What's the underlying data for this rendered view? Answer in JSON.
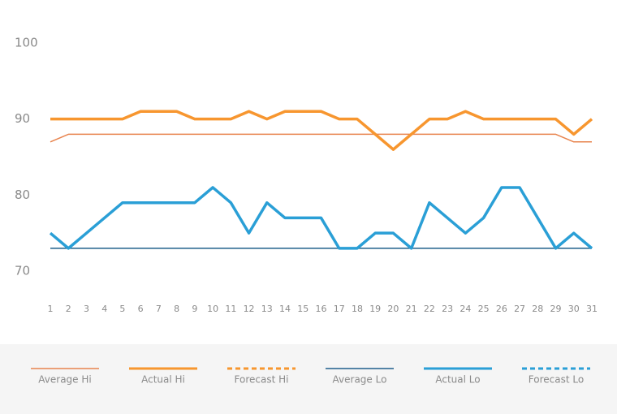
{
  "chart_data": {
    "type": "line",
    "x": [
      1,
      2,
      3,
      4,
      5,
      6,
      7,
      8,
      9,
      10,
      11,
      12,
      13,
      14,
      15,
      16,
      17,
      18,
      19,
      20,
      21,
      22,
      23,
      24,
      25,
      26,
      27,
      28,
      29,
      30,
      31
    ],
    "xlim": [
      1,
      31
    ],
    "xticks": [
      1,
      2,
      3,
      4,
      5,
      6,
      7,
      8,
      9,
      10,
      11,
      12,
      13,
      14,
      15,
      16,
      17,
      18,
      19,
      20,
      21,
      22,
      23,
      24,
      25,
      26,
      27,
      28,
      29,
      30,
      31
    ],
    "ylim": [
      70,
      100
    ],
    "yticks": [
      70,
      80,
      90,
      100
    ],
    "grid": false,
    "legend": "bottom",
    "series": [
      {
        "name": "Average Hi",
        "color": "#e8844e",
        "line_width": 1.5,
        "dashed": false,
        "values": [
          87,
          88,
          88,
          88,
          88,
          88,
          88,
          88,
          88,
          88,
          88,
          88,
          88,
          88,
          88,
          88,
          88,
          88,
          88,
          88,
          88,
          88,
          88,
          88,
          88,
          88,
          88,
          88,
          88,
          87,
          87
        ]
      },
      {
        "name": "Actual Hi",
        "color": "#f7962f",
        "line_width": 3.5,
        "dashed": false,
        "values": [
          90,
          90,
          90,
          90,
          90,
          91,
          91,
          91,
          90,
          90,
          90,
          91,
          90,
          91,
          91,
          91,
          90,
          90,
          88,
          86,
          88,
          90,
          90,
          91,
          90,
          90,
          90,
          90,
          90,
          88,
          90
        ]
      },
      {
        "name": "Forecast Hi",
        "color": "#f7962f",
        "line_width": 3.5,
        "dashed": true,
        "values": [
          null,
          null,
          null,
          null,
          null,
          null,
          null,
          null,
          null,
          null,
          null,
          null,
          null,
          null,
          null,
          null,
          null,
          null,
          null,
          null,
          null,
          null,
          null,
          null,
          null,
          null,
          null,
          null,
          null,
          null,
          null
        ]
      },
      {
        "name": "Average Lo",
        "color": "#1f5f8b",
        "line_width": 1.5,
        "dashed": false,
        "values": [
          73,
          73,
          73,
          73,
          73,
          73,
          73,
          73,
          73,
          73,
          73,
          73,
          73,
          73,
          73,
          73,
          73,
          73,
          73,
          73,
          73,
          73,
          73,
          73,
          73,
          73,
          73,
          73,
          73,
          73,
          73
        ]
      },
      {
        "name": "Actual Lo",
        "color": "#2a9fd6",
        "line_width": 3.5,
        "dashed": false,
        "values": [
          75,
          73,
          75,
          77,
          79,
          79,
          79,
          79,
          79,
          81,
          79,
          75,
          79,
          77,
          77,
          77,
          73,
          73,
          75,
          75,
          73,
          79,
          77,
          75,
          77,
          81,
          81,
          77,
          73,
          75,
          73
        ]
      },
      {
        "name": "Forecast Lo",
        "color": "#2a9fd6",
        "line_width": 3.5,
        "dashed": true,
        "values": [
          null,
          null,
          null,
          null,
          null,
          null,
          null,
          null,
          null,
          null,
          null,
          null,
          null,
          null,
          null,
          null,
          null,
          null,
          null,
          null,
          null,
          null,
          null,
          null,
          null,
          null,
          null,
          null,
          null,
          null,
          null
        ]
      }
    ]
  }
}
